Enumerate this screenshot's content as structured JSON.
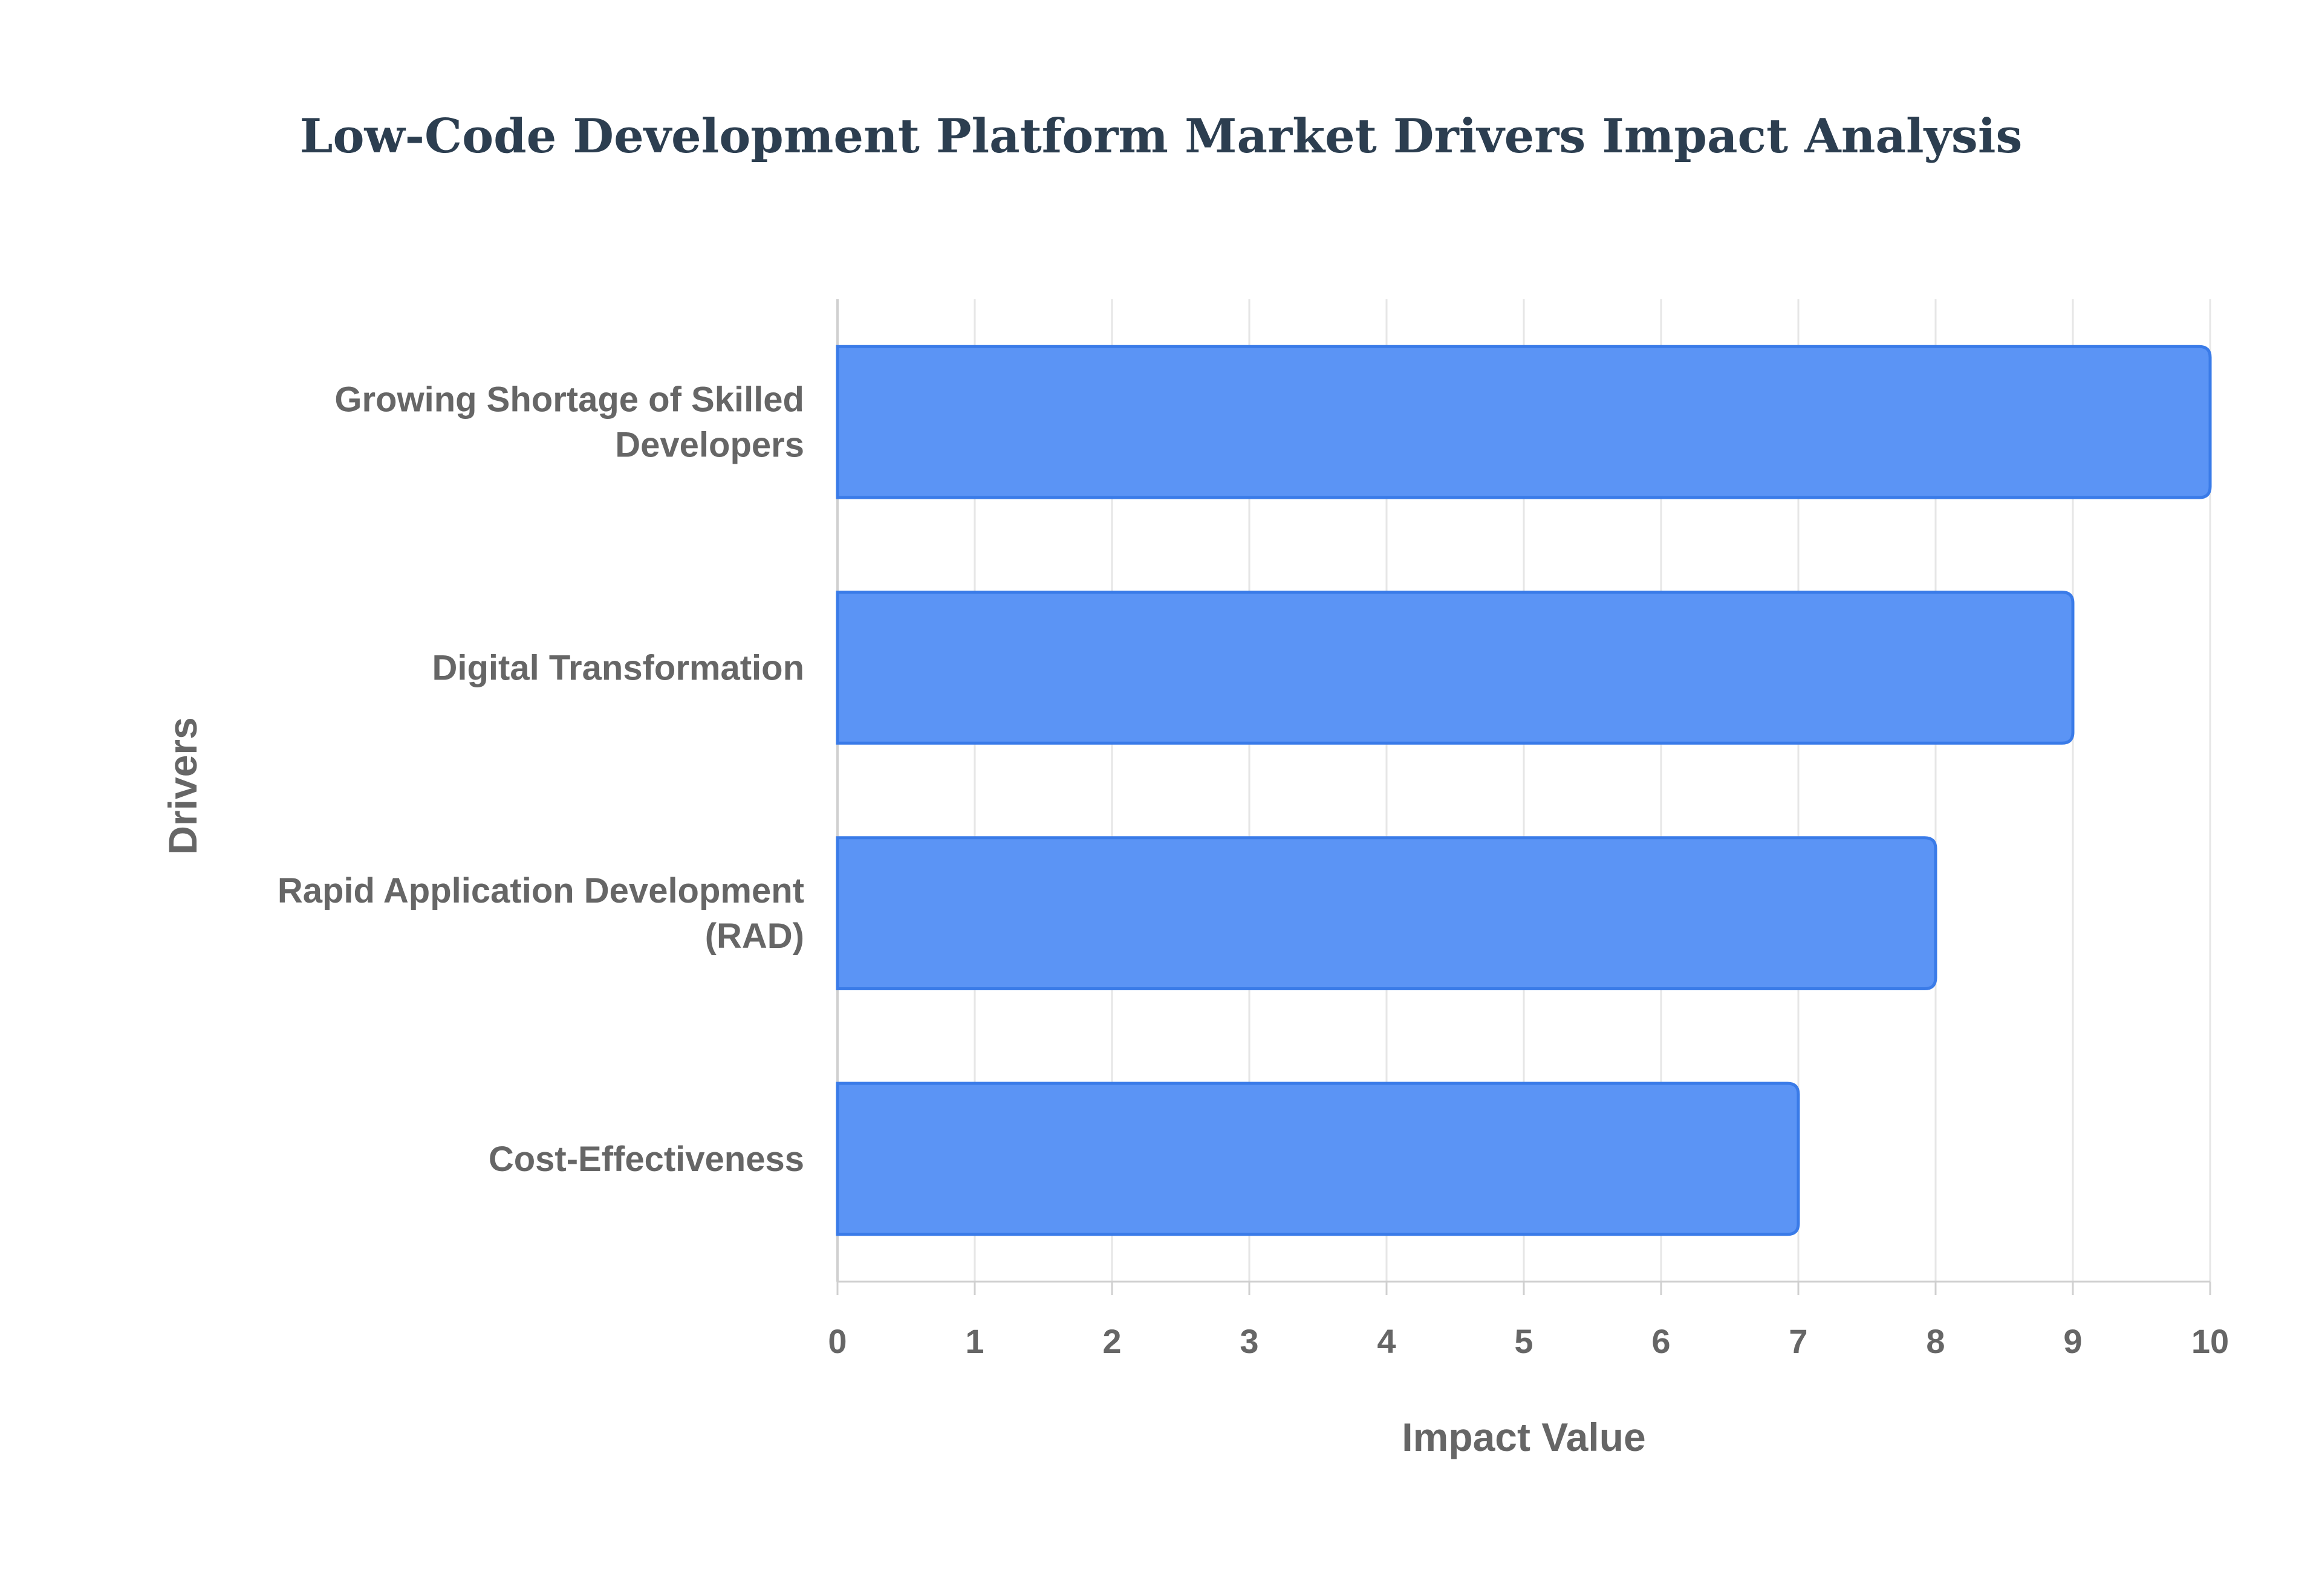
{
  "chart_data": {
    "type": "bar",
    "orientation": "horizontal",
    "title": "Low-Code Development Platform Market Drivers Impact Analysis",
    "xlabel": "Impact Value",
    "ylabel": "Drivers",
    "categories": [
      [
        "Growing Shortage of Skilled",
        "Developers"
      ],
      [
        "Digital Transformation"
      ],
      [
        "Rapid Application Development",
        "(RAD)"
      ],
      [
        "Cost-Effectiveness"
      ]
    ],
    "values": [
      10,
      9,
      8,
      7
    ],
    "xlim": [
      0,
      10
    ],
    "xticks": [
      0,
      1,
      2,
      3,
      4,
      5,
      6,
      7,
      8,
      9,
      10
    ],
    "grid": true,
    "legend": "none"
  },
  "colors": {
    "bar_fill": "#5b94f5",
    "bar_stroke": "#3a7be8",
    "grid": "#e6e6e6",
    "axis": "#d0d0d0",
    "text": "#666666",
    "title": "#2c3e50"
  }
}
